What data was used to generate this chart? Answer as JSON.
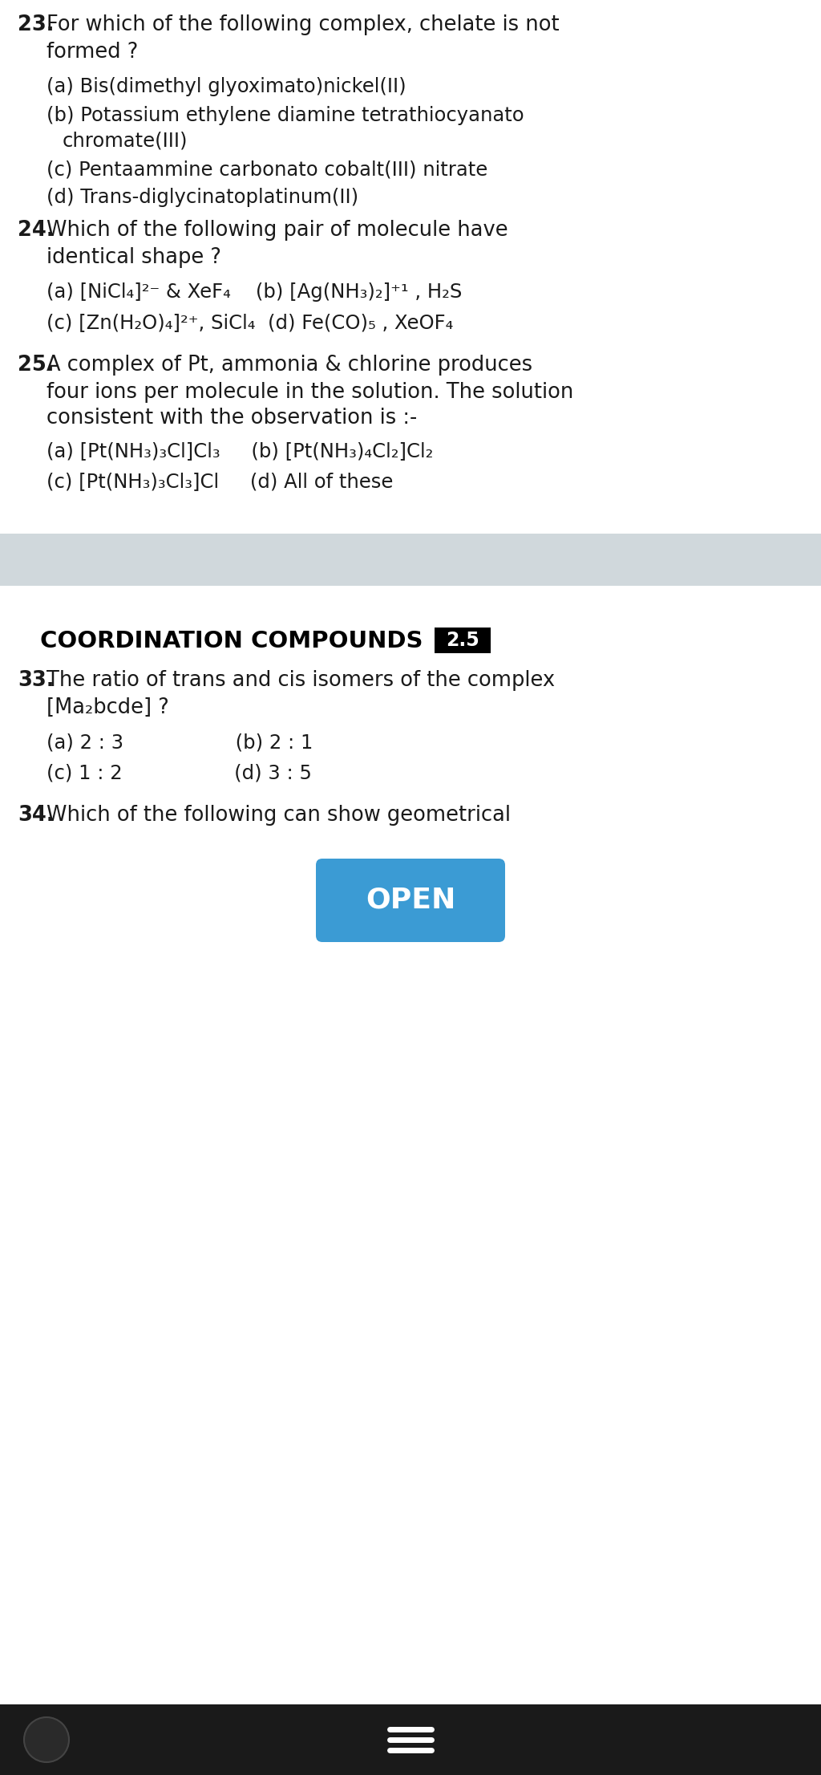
{
  "bg_color": "#ffffff",
  "separator_color": "#d0d8dc",
  "text_color": "#1a1a1a",
  "section_header": "COORDINATION COMPOUNDS",
  "section_number": "2.5",
  "section_header_color": "#000000",
  "section_badge_bg": "#000000",
  "section_badge_text_color": "#ffffff",
  "q23_num": "23.",
  "q23_a": "(a) Bis(dimethyl glyoximato)nickel(II)",
  "q23_b1": "(b) Potassium ethylene diamine tetrathiocyanato",
  "q23_b2": "      chromate(III)",
  "q23_c": "(c) Pentaammine carbonato cobalt(III) nitrate",
  "q23_d": "(d) Trans-diglycinatoplatinum(II)",
  "q24_num": "24.",
  "q25_num": "25.",
  "q33_num": "33.",
  "q34_num": "34.",
  "q34_text": "Which of the following can show geometrical",
  "open_btn_color": "#3b9bd4",
  "open_btn_text": "OPEN",
  "open_btn_text_color": "#ffffff",
  "bottom_bar_color": "#1a1a1a",
  "hamburger_color": "#ffffff"
}
